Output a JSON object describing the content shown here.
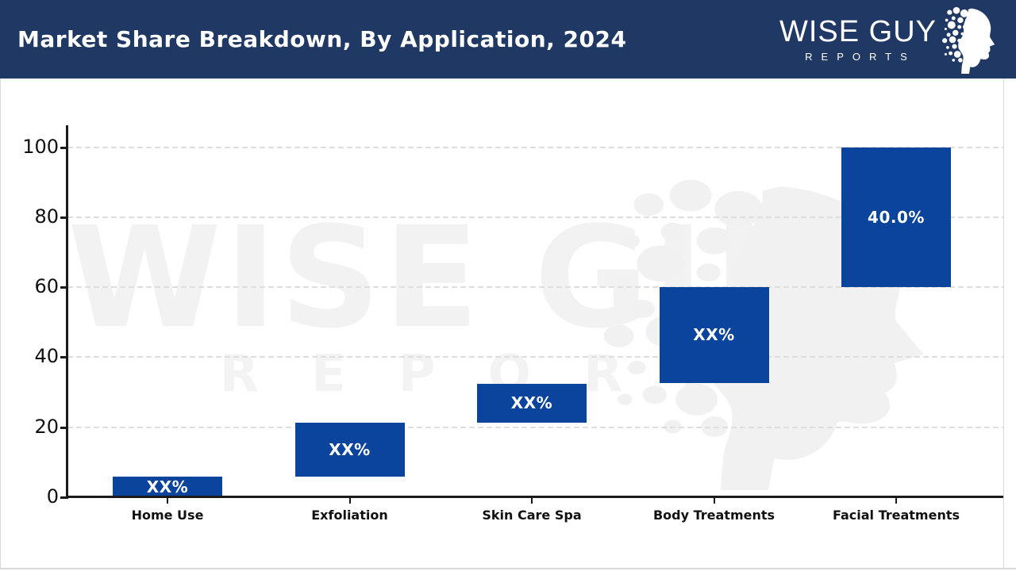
{
  "header": {
    "title": "Market Share Breakdown, By Application, 2024",
    "logo": {
      "line1": "WISE GUY",
      "line2": "REPORTS"
    }
  },
  "watermark": {
    "line1": "WISE GUY",
    "line2": "REPORTS"
  },
  "icons": {
    "logo_head": "wiseguy-head-logo",
    "watermark_head": "wiseguy-head-watermark"
  },
  "colors": {
    "header_bg": "#203864",
    "bar_blue": "#0a449c",
    "axis": "#1a1a1a",
    "grid": "#dedede",
    "watermark": "#f2f2f2",
    "page_border": "#d9d9d9",
    "bar_label": "#ffffff",
    "tick_text": "#111111"
  },
  "chart_data": {
    "type": "bar",
    "subtype": "waterfall",
    "title": "Market Share Breakdown, By Application, 2024",
    "categories": [
      "Home Use",
      "Exfoliation",
      "Skin Care Spa",
      "Body Treatments",
      "Facial Treatments"
    ],
    "segments": [
      {
        "category": "Home Use",
        "start": 0.0,
        "end": 5.9,
        "label": "XX%"
      },
      {
        "category": "Exfoliation",
        "start": 5.8,
        "end": 21.4,
        "label": "XX%"
      },
      {
        "category": "Skin Care Spa",
        "start": 21.3,
        "end": 32.4,
        "label": "XX%"
      },
      {
        "category": "Body Treatments",
        "start": 32.6,
        "end": 60.1,
        "label": "XX%"
      },
      {
        "category": "Facial Treatments",
        "start": 60.0,
        "end": 100.0,
        "label": "40.0%"
      }
    ],
    "ylim": [
      0,
      100
    ],
    "yticks": [
      0,
      20,
      40,
      60,
      80,
      100
    ],
    "grid": "horizontal-dashed",
    "legend": false,
    "xlabel": "",
    "ylabel": ""
  }
}
